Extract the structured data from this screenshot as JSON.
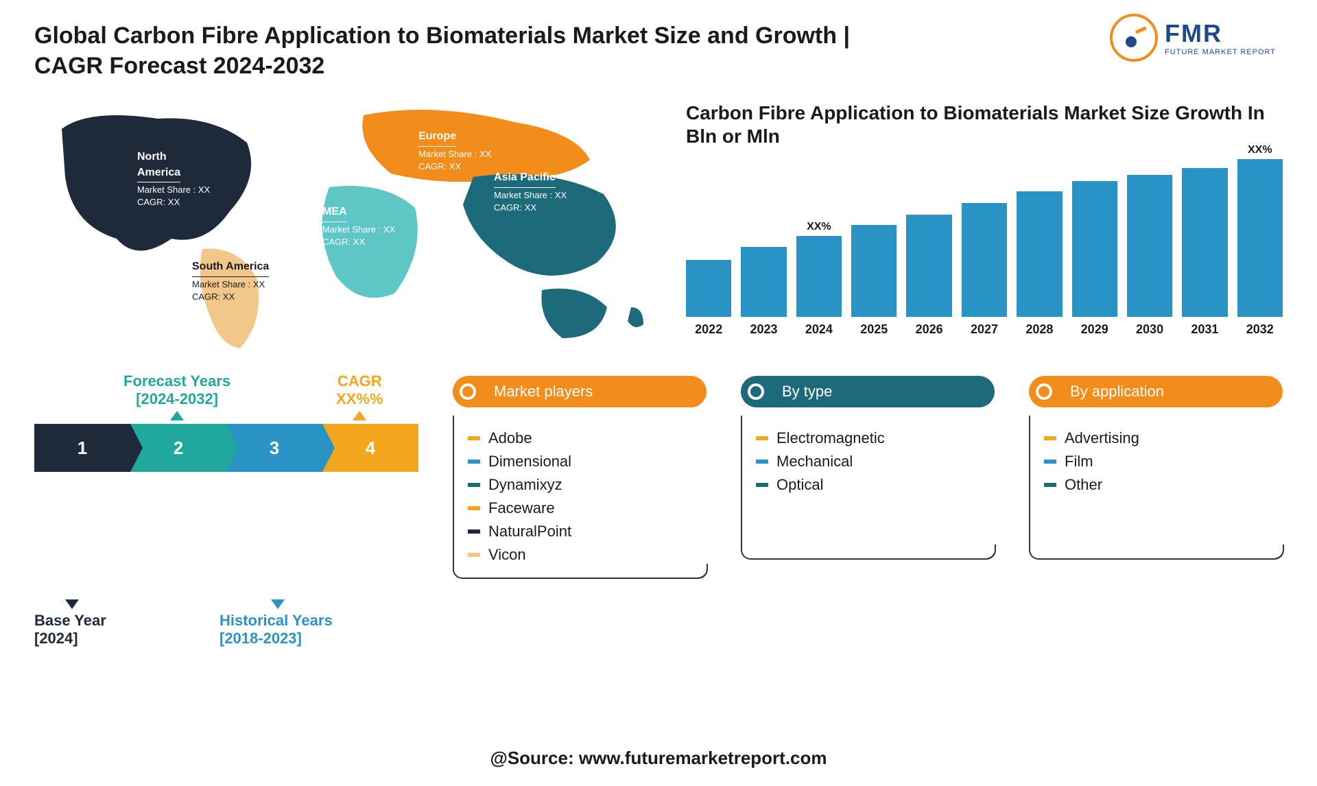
{
  "title": "Global Carbon Fibre Application to Biomaterials Market Size and Growth\n | CAGR Forecast 2024-2032",
  "logo": {
    "main": "FMR",
    "sub": "FUTURE MARKET REPORT"
  },
  "colors": {
    "na": "#1e2a3a",
    "sa": "#f2c78a",
    "eu": "#f28c1a",
    "mea": "#5fc6c6",
    "ap": "#1d6b7a",
    "bar": "#2a93c5",
    "tl1": "#1e2a3a",
    "tl2": "#1fa89e",
    "tl3": "#2a93c5",
    "tl4": "#f2a71e",
    "pill_players": "#f28c1a",
    "pill_type": "#1d6b7a",
    "pill_app": "#f28c1a"
  },
  "regions": {
    "na": {
      "name": "North\nAmerica",
      "share": "Market Share : XX",
      "cagr": "CAGR: XX"
    },
    "sa": {
      "name": "South America",
      "share": "Market Share : XX",
      "cagr": "CAGR: XX"
    },
    "eu": {
      "name": "Europe",
      "share": "Market Share : XX",
      "cagr": "CAGR: XX"
    },
    "mea": {
      "name": "MEA",
      "share": "Market Share : XX",
      "cagr": "CAGR: XX"
    },
    "ap": {
      "name": "Asia Pacific",
      "share": "Market Share : XX",
      "cagr": "CAGR: XX"
    }
  },
  "chart": {
    "title": "Carbon Fibre Application to Biomaterials Market Size Growth In\nBln or Mln",
    "years": [
      "2022",
      "2023",
      "2024",
      "2025",
      "2026",
      "2027",
      "2028",
      "2029",
      "2030",
      "2031",
      "2032"
    ],
    "values": [
      90,
      110,
      128,
      145,
      162,
      180,
      198,
      215,
      225,
      235,
      250
    ],
    "annot_2024": "XX%",
    "annot_2032": "XX%",
    "bar_color": "#2a93c5"
  },
  "timeline": {
    "forecast_label": "Forecast Years",
    "forecast_range": "[2024-2032]",
    "cagr_label": "CAGR",
    "cagr_value": "XX%%",
    "base_label": "Base Year",
    "base_value": "[2024]",
    "hist_label": "Historical Years",
    "hist_value": "[2018-2023]",
    "segs": [
      "1",
      "2",
      "3",
      "4"
    ]
  },
  "categories": {
    "players": {
      "title": "Market players",
      "items": [
        "Adobe",
        "Dimensional",
        "Dynamixyz",
        "Faceware",
        "NaturalPoint",
        "Vicon"
      ],
      "dash_colors": [
        "#f2a71e",
        "#2a93c5",
        "#1d6b7a",
        "#f2a71e",
        "#1e2a3a",
        "#f2c78a"
      ]
    },
    "type": {
      "title": "By type",
      "items": [
        "Electromagnetic",
        "Mechanical",
        "Optical"
      ],
      "dash_colors": [
        "#f2a71e",
        "#2a93c5",
        "#1d6b7a"
      ]
    },
    "app": {
      "title": "By application",
      "items": [
        "Advertising",
        "Film",
        "Other"
      ],
      "dash_colors": [
        "#f2a71e",
        "#2a93c5",
        "#1d6b7a"
      ]
    }
  },
  "source": "@Source: www.futuremarketreport.com"
}
